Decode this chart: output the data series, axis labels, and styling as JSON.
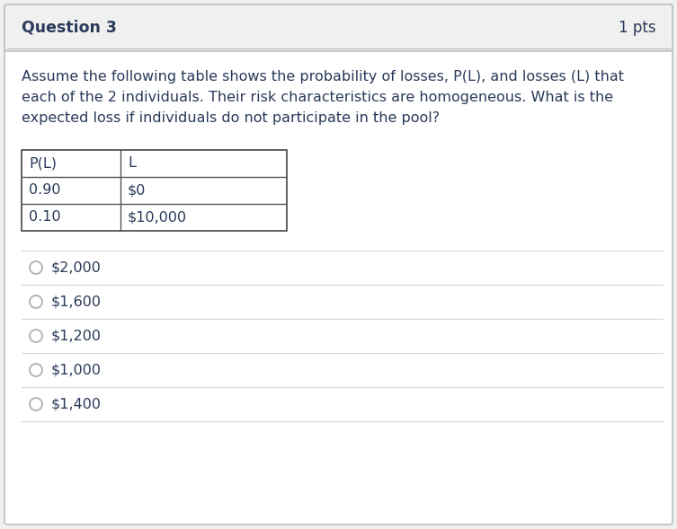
{
  "title": "Question 3",
  "pts": "1 pts",
  "question_text_lines": [
    "Assume the following table shows the probability of losses, P(L), and losses (L) that",
    "each of the 2 individuals. Their risk characteristics are homogeneous. What is the",
    "expected loss if individuals do not participate in the pool?"
  ],
  "table_headers": [
    "P(L)",
    "L"
  ],
  "table_rows": [
    [
      "0.90",
      "$0"
    ],
    [
      "0.10",
      "$10,000"
    ]
  ],
  "choices": [
    "$2,000",
    "$1,600",
    "$1,200",
    "$1,000",
    "$1,400"
  ],
  "bg_color": "#f0f0f0",
  "white": "#ffffff",
  "border_color": "#c0c0c0",
  "text_color": "#2a3a5a",
  "choice_line_color": "#d8d8d8",
  "radio_color": "#b0b0b0",
  "title_fontsize": 12.5,
  "pts_fontsize": 12,
  "question_fontsize": 11.5,
  "table_fontsize": 11.5,
  "choice_fontsize": 11.5
}
